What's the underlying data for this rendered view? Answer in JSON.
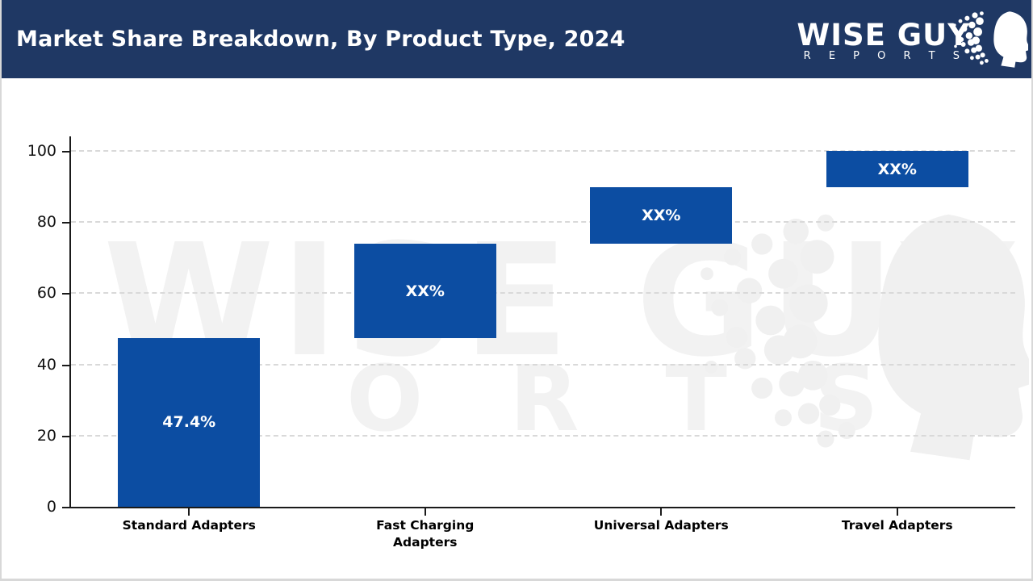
{
  "header": {
    "title": "Market Share Breakdown, By Product Type, 2024",
    "logo": {
      "line1": "WISE GUY",
      "line2": "R E P O R T S"
    }
  },
  "watermark": {
    "line1": "WISE GUY",
    "line2": "P O R T S"
  },
  "colors": {
    "header_background": "#1f3864",
    "bar_fill": "#0c4da2",
    "bar_value_text": "#ffffff",
    "gridline": "#d9d9d9",
    "axis": "#1a1a1a",
    "tick_text": "#111111",
    "watermark": "#f2f2f2",
    "page_background": "#ffffff"
  },
  "chart_data": {
    "type": "bar",
    "subtype": "waterfall",
    "title": "Market Share Breakdown, By Product Type, 2024",
    "categories": [
      "Standard Adapters",
      "Fast Charging\nAdapters",
      "Universal Adapters",
      "Travel Adapters"
    ],
    "bars": [
      {
        "category": "Standard Adapters",
        "start": 0,
        "end": 47.4,
        "label": "47.4%"
      },
      {
        "category": "Fast Charging Adapters",
        "start": 47.4,
        "end": 73.9,
        "label": "XX%"
      },
      {
        "category": "Universal Adapters",
        "start": 73.9,
        "end": 89.7,
        "label": "XX%"
      },
      {
        "category": "Travel Adapters",
        "start": 89.7,
        "end": 100,
        "label": "XX%"
      }
    ],
    "xlabel": "",
    "ylabel": "",
    "yticks": [
      0,
      20,
      40,
      60,
      80,
      100
    ],
    "ylim": [
      0,
      104
    ],
    "grid": "horizontal-dashed",
    "legend": "none"
  }
}
